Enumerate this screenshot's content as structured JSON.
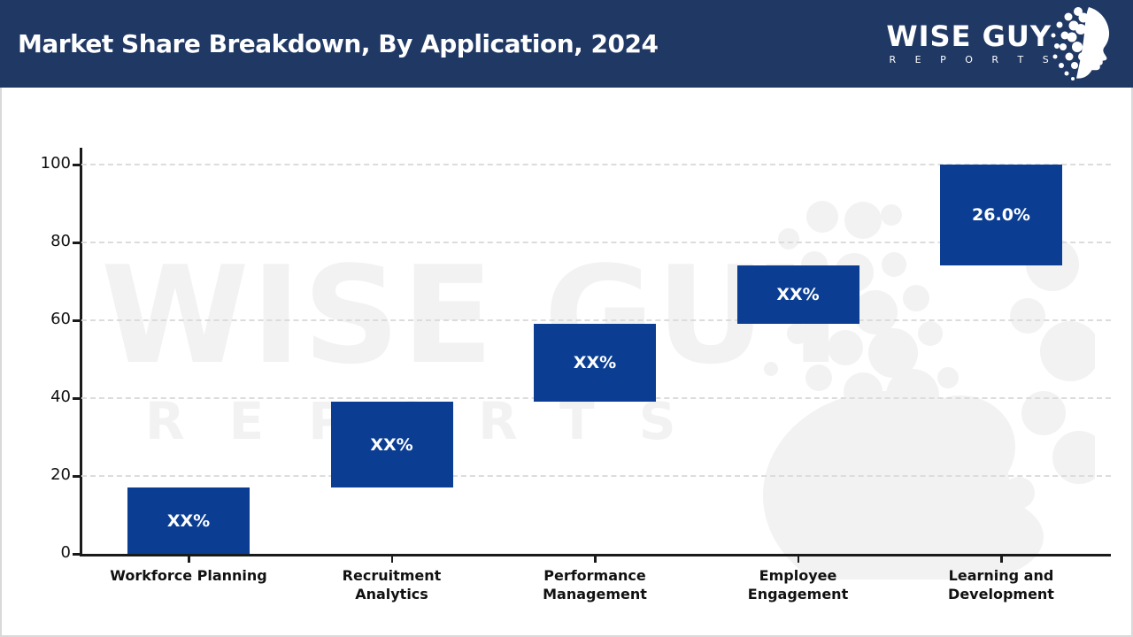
{
  "header": {
    "title": "Market Share Breakdown, By Application, 2024",
    "logo": {
      "line1": "WISE GUY",
      "line2": "R E P O R T S"
    }
  },
  "watermark": {
    "line1": "WISE GUY",
    "line2": "REPORTS"
  },
  "chart_data": {
    "type": "bar",
    "subtype": "waterfall",
    "title": "Market Share Breakdown, By Application, 2024",
    "categories": [
      "Workforce Planning",
      "Recruitment\nAnalytics",
      "Performance\nManagement",
      "Employee\nEngagement",
      "Learning and\nDevelopment"
    ],
    "values": [
      17,
      22,
      20,
      15,
      26
    ],
    "starts": [
      0,
      17,
      39,
      59,
      74
    ],
    "bar_labels": [
      "XX%",
      "XX%",
      "XX%",
      "XX%",
      "26.0%"
    ],
    "unit": "%",
    "xlabel": "",
    "ylabel": "",
    "ylim": [
      0,
      104.5
    ],
    "yticks": [
      0,
      20,
      40,
      60,
      80,
      100
    ],
    "grid": "horizontal-dashed",
    "legend": "none",
    "colors": {
      "bar": "#0b3e92",
      "bar_label_text": "#ffffff",
      "axis": "#1a1a1a",
      "grid": "#dcdcdc"
    }
  },
  "colors": {
    "header_bg": "#203864",
    "page_bg": "#ffffff",
    "watermark": "#f2f2f2",
    "border": "#d9d9d9"
  }
}
